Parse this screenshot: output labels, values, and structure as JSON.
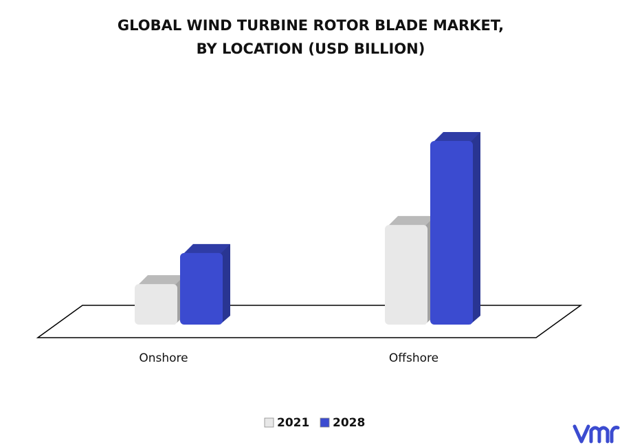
{
  "chart_data": {
    "type": "bar3d",
    "title": [
      "GLOBAL WIND TURBINE ROTOR BLADE MARKET,",
      "BY LOCATION (USD BILLION)"
    ],
    "categories": [
      "Onshore",
      "Offshore"
    ],
    "series": [
      {
        "name": "2021",
        "color": "#e8e8e8",
        "values": [
          1.3,
          3.2
        ]
      },
      {
        "name": "2028",
        "color": "#3b4bd0",
        "values": [
          2.3,
          5.9
        ]
      }
    ],
    "legend": "bottom"
  }
}
